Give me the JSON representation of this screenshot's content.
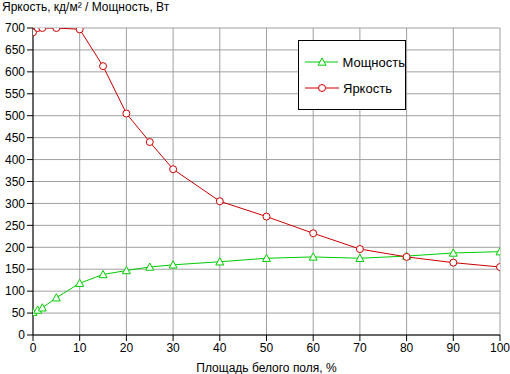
{
  "chart_data": {
    "type": "line",
    "y_label": "Яркость, кд/м² / Мощность, Вт",
    "x_label": "Площадь белого поля, %",
    "x": [
      0,
      1,
      2,
      5,
      10,
      15,
      20,
      25,
      30,
      40,
      50,
      60,
      70,
      80,
      90,
      100
    ],
    "series": [
      {
        "name": "Мощность",
        "color": "#00cc00",
        "marker": "triangle",
        "values": [
          52,
          57,
          62,
          85,
          118,
          138,
          147,
          155,
          160,
          167,
          175,
          178,
          175,
          180,
          187,
          190
        ]
      },
      {
        "name": "Яркость",
        "color": "#cc0000",
        "marker": "circle",
        "values": [
          690,
          700,
          700,
          700,
          697,
          613,
          505,
          440,
          378,
          305,
          270,
          232,
          196,
          178,
          165,
          155
        ]
      }
    ],
    "xlim": [
      0,
      100
    ],
    "xticks": [
      0,
      10,
      20,
      30,
      40,
      50,
      60,
      70,
      80,
      90,
      100
    ],
    "ylim": [
      0,
      700
    ],
    "yticks": [
      0,
      50,
      100,
      150,
      200,
      250,
      300,
      350,
      400,
      450,
      500,
      550,
      600,
      650,
      700
    ],
    "grid": true,
    "legend": "upper right"
  }
}
